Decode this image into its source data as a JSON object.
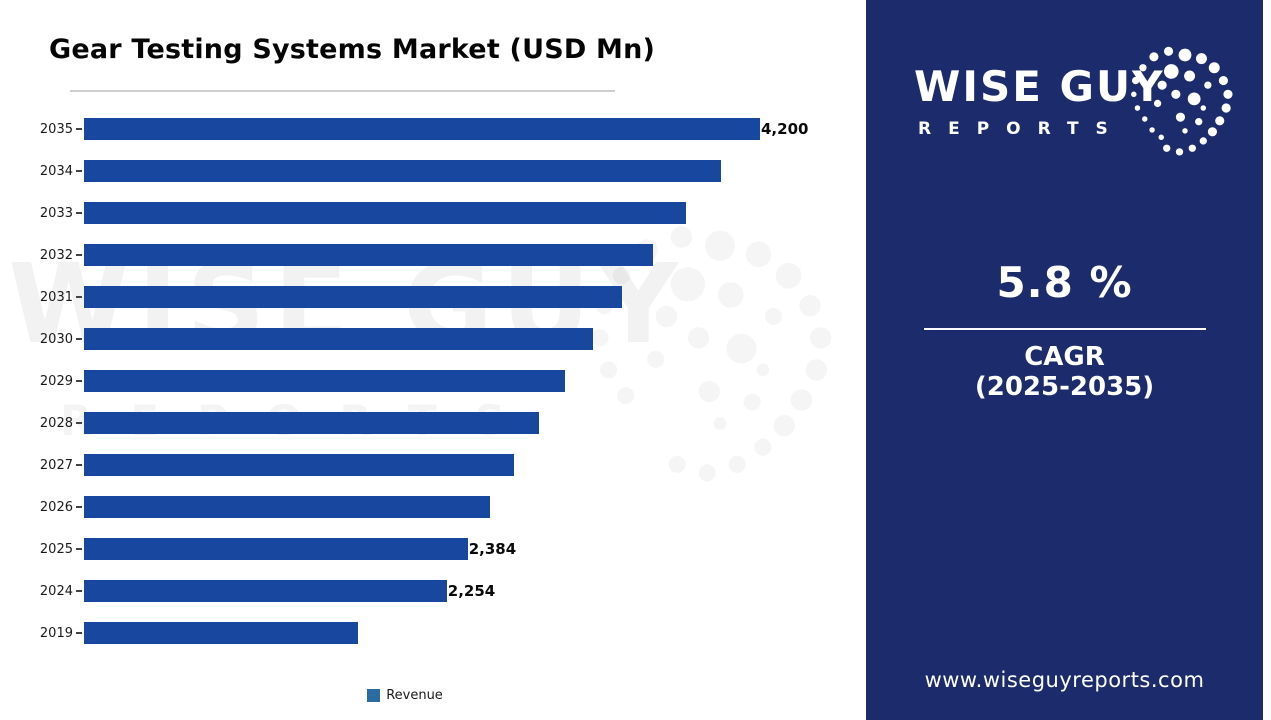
{
  "chart": {
    "title": "Gear Testing Systems Market (USD Mn)",
    "legend": "Revenue",
    "bar_color": "#17479e",
    "legend_color": "#2d6ca3"
  },
  "watermark": {
    "line1": "WISE GUY",
    "line2": "REPORTS"
  },
  "sidebar": {
    "bg_color": "#1c2b6b",
    "logo_line1": "WISE GUY",
    "logo_line2": "REPORTS",
    "cagr_value": "5.8 %",
    "cagr_label": "CAGR",
    "cagr_range": "(2025-2035)",
    "website": "www.wiseguyreports.com"
  },
  "chart_data": {
    "type": "bar",
    "orientation": "horizontal",
    "title": "Gear Testing Systems Market (USD Mn)",
    "xlabel": "",
    "ylabel": "",
    "categories": [
      "2035",
      "2034",
      "2033",
      "2032",
      "2031",
      "2030",
      "2029",
      "2028",
      "2027",
      "2026",
      "2025",
      "2024",
      "2019"
    ],
    "values": [
      4200,
      3960,
      3743,
      3538,
      3344,
      3160,
      2987,
      2824,
      2669,
      2522,
      2384,
      2254,
      1700
    ],
    "data_labels": {
      "2035": "4,200",
      "2025": "2,384",
      "2024": "2,254"
    },
    "xlim": [
      0,
      4200
    ],
    "grid": false,
    "legend": [
      "Revenue"
    ],
    "legend_position": "bottom-center",
    "series_name": "Revenue"
  }
}
